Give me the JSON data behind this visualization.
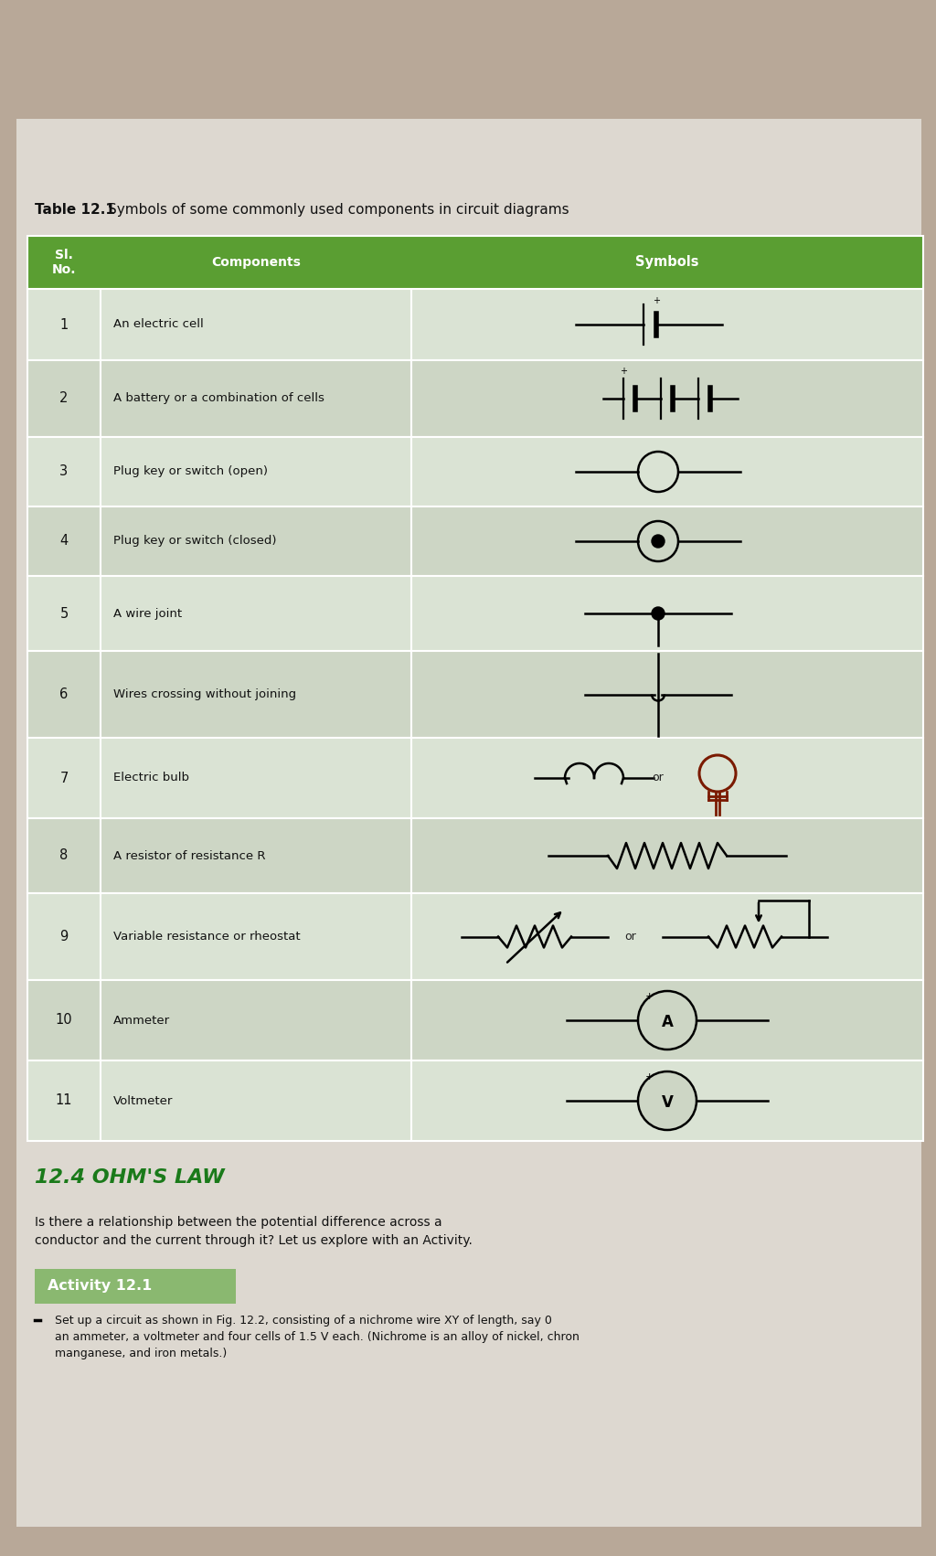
{
  "title_bold": "Table 12.1 ",
  "title_rest": "Symbols of some commonly used components in circuit diagrams",
  "header_bg": "#5a9e32",
  "header_text_color": "#ffffff",
  "row_bg_even": "#cdd6c5",
  "row_bg_odd": "#dae3d4",
  "col1_header": "Sl.\nNo.",
  "col2_header": "Components",
  "col3_header": "Symbols",
  "rows": [
    {
      "num": "1",
      "component": "An electric cell"
    },
    {
      "num": "2",
      "component": "A battery or a combination of cells"
    },
    {
      "num": "3",
      "component": "Plug key or switch (open)"
    },
    {
      "num": "4",
      "component": "Plug key or switch (closed)"
    },
    {
      "num": "5",
      "component": "A wire joint"
    },
    {
      "num": "6",
      "component": "Wires crossing without joining"
    },
    {
      "num": "7",
      "component": "Electric bulb"
    },
    {
      "num": "8",
      "component": "A resistor of resistance R"
    },
    {
      "num": "9",
      "component": "Variable resistance or rheostat"
    },
    {
      "num": "10",
      "component": "Ammeter"
    },
    {
      "num": "11",
      "component": "Voltmeter"
    }
  ],
  "page_bg": "#b8a898",
  "paper_bg": "#ddd8d0",
  "ohm_title": "12.4 OHM'S LAW",
  "ohm_text1": "Is there a relationship between the potential difference across a",
  "ohm_text2": "conductor and the current through it? Let us explore with an Activity.",
  "activity_label": "Activity 12.1",
  "activity_bg": "#8ab870",
  "activity_text1": "  Set up a circuit as shown in Fig. 12.2, consisting of a nichrome wire XY of length, say 0",
  "activity_text2": "  an ammeter, a voltmeter and four cells of 1.5 V each. (Nichrome is an alloy of nickel, chron",
  "activity_text3": "  manganese, and iron metals.)"
}
